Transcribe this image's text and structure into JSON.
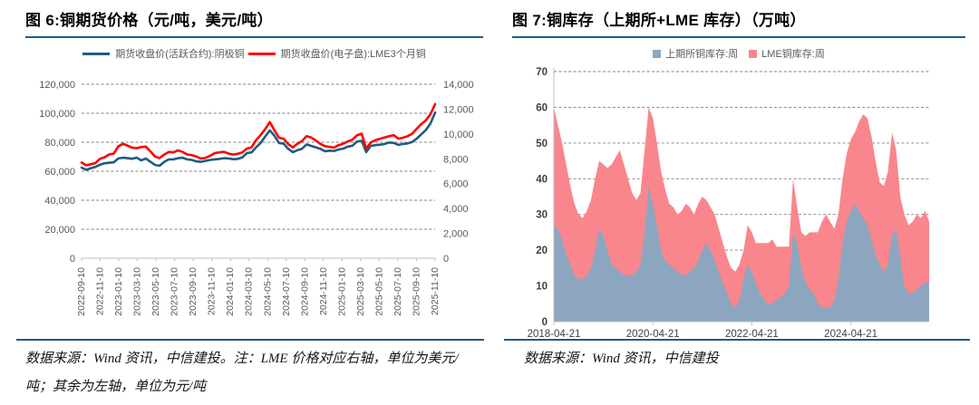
{
  "panels": {
    "left": {
      "title": "图 6:铜期货价格（元/吨，美元/吨）",
      "source_note": "数据来源：Wind 资讯，中信建投。注：LME 价格对应右轴，单位为美元/吨；其余为左轴，单位为元/吨"
    },
    "right": {
      "title": "图 7:铜库存（上期所+LME 库存）（万吨）",
      "source_note": "数据来源：Wind 资讯，中信建投"
    }
  },
  "colors": {
    "rule_blue": "#1F5C8A",
    "grid_gray": "#7F7F7F",
    "axis_gray": "#BFBFBF",
    "shfe_line_blue": "#1F5C82",
    "lme_line_red": "#FF0000",
    "shfe_area_blue": "#8CA6BF",
    "lme_area_pink": "#F9868C"
  },
  "chart_data": [
    {
      "type": "line",
      "title": "铜期货价格（元/吨，美元/吨）",
      "grid": "horizontal dashed",
      "legend_position": "top center",
      "x_tick_labels": [
        "2022-09-10",
        "2022-11-10",
        "2023-01-10",
        "2023-03-10",
        "2023-05-10",
        "2023-07-10",
        "2023-09-10",
        "2023-11-10",
        "2024-01-10",
        "2024-03-10",
        "2024-05-10",
        "2024-07-10",
        "2024-09-10",
        "2024-11-10",
        "2025-01-10",
        "2025-03-10",
        "2025-05-10",
        "2025-07-10",
        "2025-09-10",
        "2025-11-10"
      ],
      "left_axis": {
        "min": 0,
        "max": 120000,
        "step": 20000,
        "tick_labels": [
          "120,000",
          "100,000",
          "80,000",
          "60,000",
          "40,000",
          "20,000",
          "0"
        ]
      },
      "right_axis": {
        "min": 0,
        "max": 14000,
        "step": 2000,
        "tick_labels": [
          "14,000",
          "12,000",
          "10,000",
          "8,000",
          "6,000",
          "4,000",
          "2,000",
          "0"
        ]
      },
      "series": [
        {
          "name": "期货收盘价(活跃合约):阴极铜",
          "axis": "left",
          "color": "#1F5C82",
          "unit": "元/吨",
          "values": [
            62500,
            61000,
            62000,
            63000,
            64500,
            65500,
            65800,
            66200,
            68800,
            69300,
            69000,
            68600,
            69400,
            67500,
            68800,
            66500,
            64300,
            63800,
            66500,
            68200,
            68200,
            69000,
            69300,
            68200,
            67800,
            66800,
            66500,
            67200,
            67800,
            68200,
            68500,
            69000,
            68800,
            68300,
            68500,
            69500,
            72500,
            73000,
            76500,
            79500,
            84000,
            88200,
            84500,
            79500,
            79000,
            75500,
            73200,
            74500,
            75500,
            78500,
            77500,
            76500,
            75500,
            73800,
            74200,
            74000,
            75000,
            75600,
            77000,
            77600,
            80500,
            81000,
            73200,
            77500,
            78000,
            78300,
            78800,
            79800,
            79500,
            78200,
            78800,
            79200,
            80200,
            82500,
            85500,
            88500,
            93000,
            100500
          ]
        },
        {
          "name": "期货收盘价(电子盘):LME3个月铜",
          "axis": "right",
          "color": "#FF0000",
          "unit": "美元/吨",
          "values": [
            7700,
            7480,
            7560,
            7650,
            8000,
            8120,
            8350,
            8420,
            9000,
            9220,
            9060,
            8900,
            8860,
            8950,
            8980,
            8600,
            8180,
            8060,
            8350,
            8550,
            8520,
            8680,
            8550,
            8350,
            8300,
            8180,
            8020,
            8080,
            8250,
            8460,
            8520,
            8560,
            8420,
            8340,
            8400,
            8520,
            8820,
            8920,
            9500,
            9920,
            10400,
            10960,
            10300,
            9700,
            9620,
            9180,
            8920,
            9220,
            9420,
            9820,
            9720,
            9480,
            9200,
            9020,
            8960,
            8900,
            9100,
            9220,
            9400,
            9540,
            9900,
            10020,
            8820,
            9320,
            9500,
            9620,
            9720,
            9820,
            9900,
            9620,
            9700,
            9820,
            10020,
            10420,
            10800,
            11100,
            11600,
            12400
          ]
        }
      ]
    },
    {
      "type": "area",
      "stacked": true,
      "title": "铜库存（上期所+LME 库存）（万吨）",
      "grid": "horizontal dashed",
      "legend_position": "top center",
      "x_start": "2018-04-21",
      "x_end": "2025-11",
      "x_range_months": 91,
      "x_tick_labels": [
        "2018-04-21",
        "2020-04-21",
        "2022-04-21",
        "2024-04-21"
      ],
      "x_tick_month_positions": [
        0,
        24,
        48,
        72
      ],
      "y_axis": {
        "min": 0,
        "max": 70,
        "step": 10,
        "tick_labels": [
          "70",
          "60",
          "50",
          "40",
          "30",
          "20",
          "10",
          "0"
        ]
      },
      "series": [
        {
          "name": "上期所铜库存:周",
          "color": "#8CA6BF",
          "unit": "万吨",
          "values": [
            27,
            26,
            23,
            19,
            16,
            13,
            12,
            12,
            13,
            15,
            20,
            26,
            24,
            20,
            16,
            15,
            14,
            13,
            13,
            13,
            14,
            16,
            25,
            38,
            33,
            27,
            20,
            17,
            16,
            15,
            14,
            13,
            13,
            14,
            15,
            17,
            20,
            22,
            20,
            17,
            14,
            11,
            8,
            5,
            4,
            6,
            12,
            16,
            14,
            11,
            8,
            6,
            5,
            5,
            6,
            7,
            8,
            10,
            25,
            22,
            15,
            11,
            9,
            8,
            5,
            4,
            4,
            4,
            6,
            12,
            22,
            28,
            31,
            33,
            31,
            29,
            27,
            23,
            19,
            16,
            14,
            16,
            24,
            26,
            18,
            10,
            8,
            8,
            9,
            10,
            11,
            11
          ]
        },
        {
          "name": "LME铜库存:周",
          "color": "#F9868C",
          "unit": "万吨",
          "values": [
            33,
            29,
            27,
            25,
            22,
            20,
            18,
            17,
            18,
            19,
            20,
            19,
            20,
            23,
            28,
            31,
            34,
            31,
            27,
            23,
            20,
            20,
            23,
            22,
            24,
            23,
            22,
            20,
            17,
            17,
            16,
            18,
            20,
            18,
            15,
            16,
            15,
            12,
            12,
            13,
            12,
            11,
            10,
            10,
            10,
            10,
            8,
            11,
            11,
            11,
            14,
            16,
            17,
            18,
            15,
            14,
            13,
            11,
            15,
            10,
            10,
            13,
            16,
            17,
            20,
            24,
            26,
            24,
            20,
            18,
            18,
            19,
            20,
            20,
            25,
            29,
            30,
            29,
            26,
            23,
            24,
            26,
            29,
            22,
            17,
            20,
            19,
            20,
            21,
            19,
            20,
            17
          ]
        }
      ]
    }
  ]
}
